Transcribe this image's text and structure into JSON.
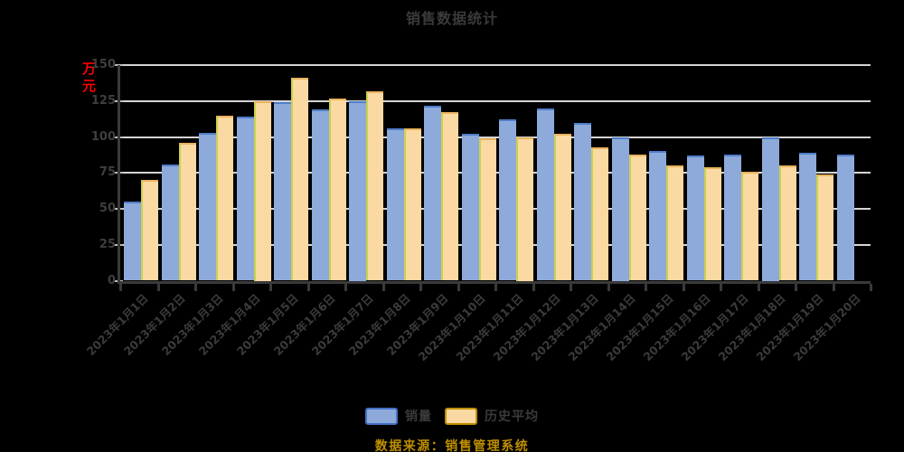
{
  "title": "销售数据统计",
  "y_axis_unit": "万元",
  "colors": {
    "background": "#000000",
    "gridline": "#d4d4d4",
    "axis": "#3a3a3a",
    "text_dark": "#3b3b3b",
    "unit_label_red": "#ff0000",
    "footer_gold": "#bf8f00",
    "series_blue_fill": "#8eaadb",
    "series_blue_border": "#4472c4",
    "series_tan_fill": "#fbd9a3",
    "series_tan_border": "#eab25f",
    "series_tan_edge": "#c9d24b"
  },
  "legend": [
    {
      "label": "销量",
      "fill": "#8eaadb",
      "border": "#4472c4"
    },
    {
      "label": "历史平均",
      "fill": "#fbd9a3",
      "border": "#bf9000"
    }
  ],
  "footer": {
    "text": "数据来源：销售管理系统",
    "color": "#bf8f00"
  },
  "chart_data": {
    "type": "bar",
    "title": "销售数据统计",
    "categories": [
      "2023年1月1日",
      "2023年1月2日",
      "2023年1月3日",
      "2023年1月4日",
      "2023年1月5日",
      "2023年1月6日",
      "2023年1月7日",
      "2023年1月8日",
      "2023年1月9日",
      "2023年1月10日",
      "2023年1月11日",
      "2023年1月12日",
      "2023年1月13日",
      "2023年1月14日",
      "2023年1月15日",
      "2023年1月16日",
      "2023年1月17日",
      "2023年1月18日",
      "2023年1月19日",
      "2023年1月20日"
    ],
    "series": [
      {
        "name": "销量",
        "fill": "#8eaadb",
        "values": [
          55,
          81,
          103,
          114,
          124,
          119,
          125,
          106,
          122,
          102,
          112,
          120,
          110,
          100,
          90,
          87,
          88,
          100,
          89,
          88
        ]
      },
      {
        "name": "历史平均",
        "fill": "#fbd9a3",
        "values": [
          70,
          96,
          115,
          125,
          141,
          127,
          132,
          106,
          117,
          99,
          100,
          102,
          93,
          88,
          80,
          79,
          76,
          80,
          74,
          null
        ]
      }
    ],
    "ylim": [
      0,
      150
    ],
    "y_ticks": [
      0,
      25,
      50,
      75,
      100,
      125,
      150
    ],
    "xlabel": "",
    "ylabel": "万元",
    "grid": true,
    "legend_position": "bottom"
  }
}
